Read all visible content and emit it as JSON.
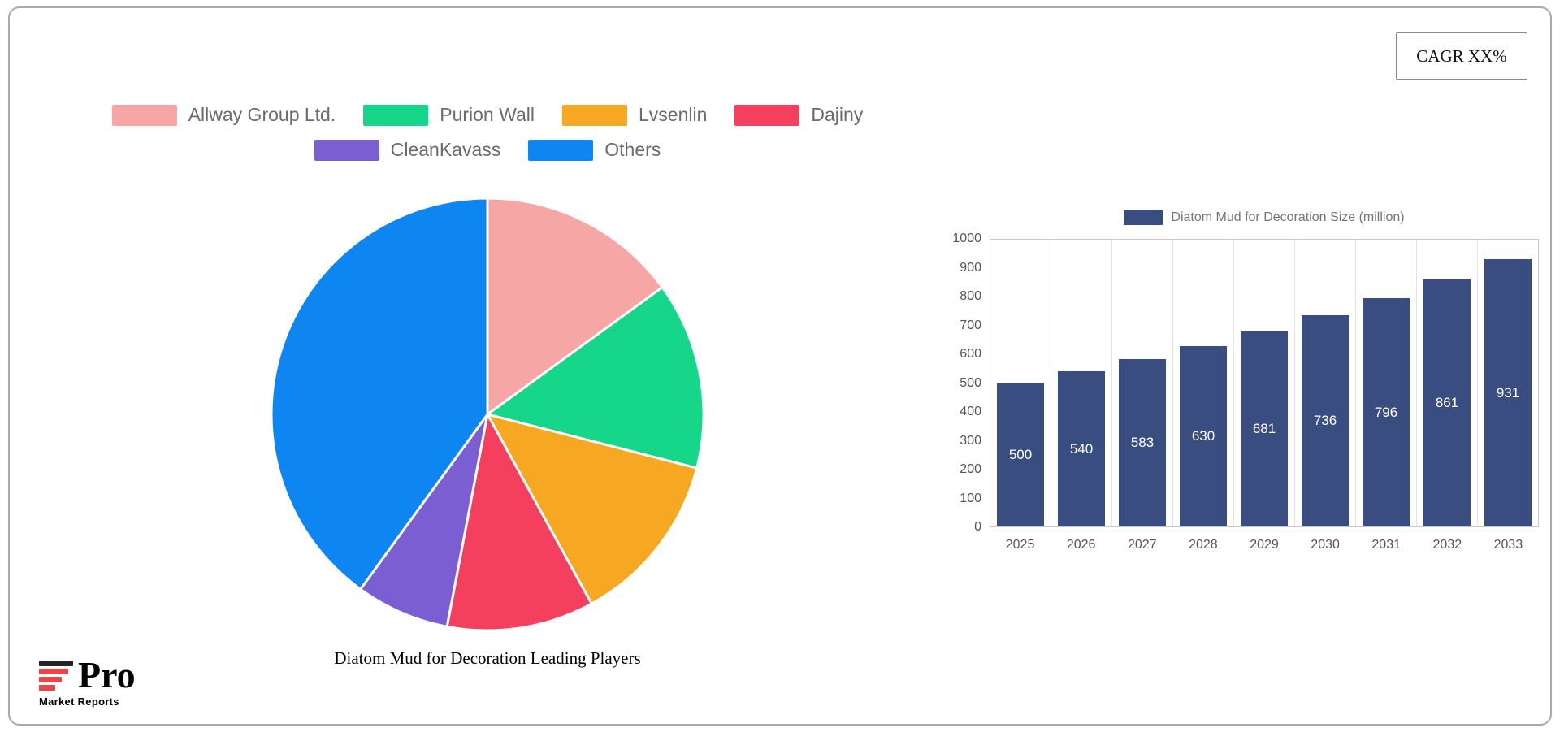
{
  "cagr_label": "CAGR XX%",
  "logo": {
    "name": "Pro",
    "subtitle": "Market Reports"
  },
  "chart_data": [
    {
      "type": "pie",
      "title": "Diatom Mud for Decoration Leading Players",
      "labels": [
        "Allway Group Ltd.",
        "Purion Wall",
        "Lvsenlin",
        "Dajiny",
        "CleanKavass",
        "Others"
      ],
      "values": [
        15,
        14,
        13,
        11,
        7,
        40
      ],
      "colors": [
        "#f7a6a6",
        "#16d68a",
        "#f7a823",
        "#f43f5e",
        "#7b5fd2",
        "#0d86f2"
      ],
      "legend_position": "top",
      "start_angle_deg": -90,
      "direction": "clockwise"
    },
    {
      "type": "bar",
      "legend": "Diatom Mud for Decoration Size (million)",
      "categories": [
        "2025",
        "2026",
        "2027",
        "2028",
        "2029",
        "2030",
        "2031",
        "2032",
        "2033"
      ],
      "values": [
        500,
        540,
        583,
        630,
        681,
        736,
        796,
        861,
        931
      ],
      "bar_color": "#3a4d80",
      "ylim": [
        0,
        1000
      ],
      "ytick_step": 100,
      "grid": "vertical",
      "value_labels": "inside-center-white",
      "legend_position": "top"
    }
  ]
}
